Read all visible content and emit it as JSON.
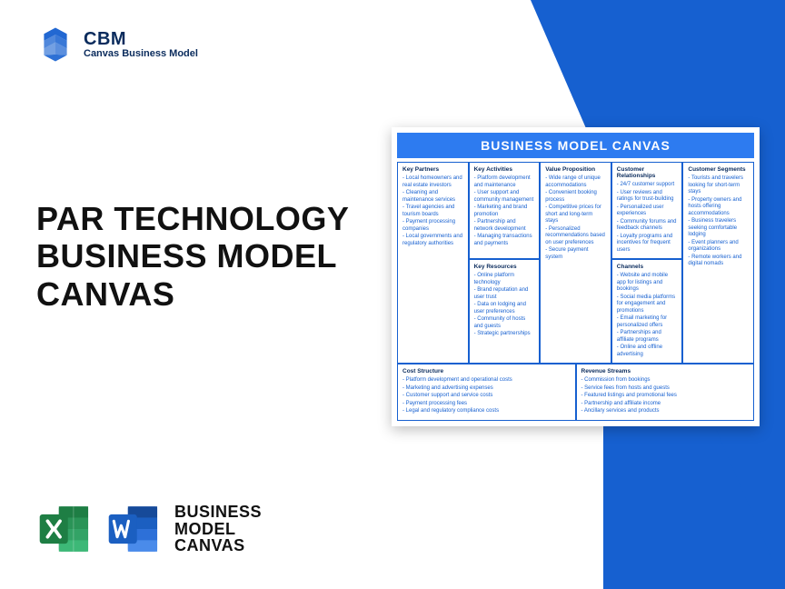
{
  "colors": {
    "brand_blue": "#1660d0",
    "light_blue": "#2d7bf0",
    "dark_navy": "#0a2b5c",
    "excel_green": "#1e7e44",
    "excel_green_light": "#33a366",
    "word_blue": "#1b5fc1",
    "word_blue_light": "#3a7de0",
    "text_black": "#111111",
    "white": "#ffffff"
  },
  "logo": {
    "title": "CBM",
    "subtitle": "Canvas Business Model"
  },
  "main_title": {
    "line1": "PAR TECHNOLOGY",
    "line2": "BUSINESS MODEL",
    "line3": "CANVAS"
  },
  "bottom": {
    "line1": "BUSINESS",
    "line2": "MODEL",
    "line3": "CANVAS"
  },
  "canvas": {
    "title": "BUSINESS MODEL CANVAS",
    "key_partners": {
      "header": "Key Partners",
      "items": [
        "Local homeowners and real estate investors",
        "Cleaning and maintenance services",
        "Travel agencies and tourism boards",
        "Payment processing companies",
        "Local governments and regulatory authorities"
      ]
    },
    "key_activities": {
      "header": "Key Activities",
      "items": [
        "Platform development and maintenance",
        "User support and community management",
        "Marketing and brand promotion",
        "Partnership and network development",
        "Managing transactions and payments"
      ]
    },
    "value_proposition": {
      "header": "Value Proposition",
      "items": [
        "Wide range of unique accommodations",
        "Convenient booking process",
        "Competitive prices for short and long-term stays",
        "Personalized recommendations based on user preferences",
        "Secure payment system"
      ]
    },
    "customer_relationships": {
      "header": "Customer Relationships",
      "items": [
        "24/7 customer support",
        "User reviews and ratings for trust-building",
        "Personalized user experiences",
        "Community forums and feedback channels",
        "Loyalty programs and incentives for frequent users"
      ]
    },
    "customer_segments": {
      "header": "Customer Segments",
      "items": [
        "Tourists and travelers looking for short-term stays",
        "Property owners and hosts offering accommodations",
        "Business travelers seeking comfortable lodging",
        "Event planners and organizations",
        "Remote workers and digital nomads"
      ]
    },
    "key_resources": {
      "header": "Key Resources",
      "items": [
        "Online platform technology",
        "Brand reputation and user trust",
        "Data on lodging and user preferences",
        "Community of hosts and guests",
        "Strategic partnerships"
      ]
    },
    "channels": {
      "header": "Channels",
      "items": [
        "Website and mobile app for listings and bookings",
        "Social media platforms for engagement and promotions",
        "Email marketing for personalized offers",
        "Partnerships and affiliate programs",
        "Online and offline advertising"
      ]
    },
    "cost_structure": {
      "header": "Cost Structure",
      "items": [
        "Platform development and operational costs",
        "Marketing and advertising expenses",
        "Customer support and service costs",
        "Payment processing fees",
        "Legal and regulatory compliance costs"
      ]
    },
    "revenue_streams": {
      "header": "Revenue Streams",
      "items": [
        "Commission from bookings",
        "Service fees from hosts and guests",
        "Featured listings and promotional fees",
        "Partnership and affiliate income",
        "Ancillary services and products"
      ]
    }
  }
}
